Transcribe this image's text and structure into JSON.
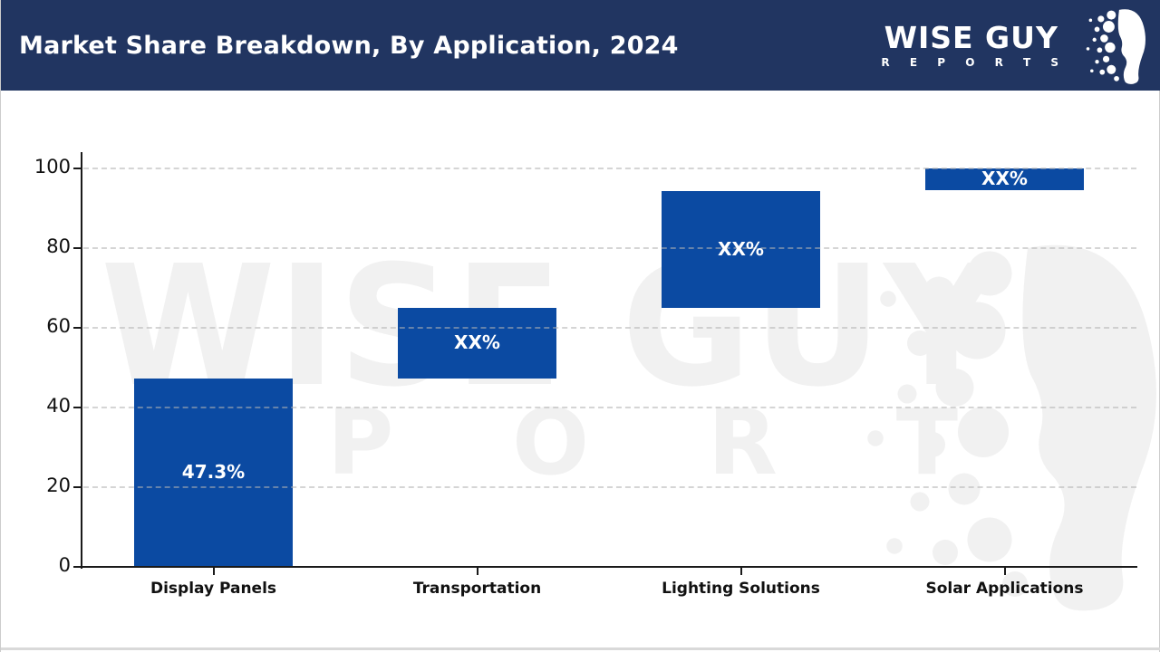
{
  "header": {
    "title": "Market Share Breakdown, By Application, 2024",
    "brand": {
      "line1": "WISE GUY",
      "line2": "R E P O R T S"
    }
  },
  "watermark": {
    "line1": "WISE GUY",
    "line2": "P O R T S"
  },
  "chart_data": {
    "type": "bar",
    "subtype": "waterfall",
    "title": "Market Share Breakdown, By Application, 2024",
    "xlabel": "",
    "ylabel": "",
    "ylim": [
      0,
      100
    ],
    "yticks": [
      0,
      20,
      40,
      60,
      80,
      100
    ],
    "grid": "horizontal-dashed",
    "legend": "none",
    "categories": [
      "Display Panels",
      "Transportation",
      "Lighting Solutions",
      "Solar Applications"
    ],
    "segments": [
      {
        "category": "Display Panels",
        "start": 0,
        "end": 47.3,
        "label": "47.3%"
      },
      {
        "category": "Transportation",
        "start": 47.3,
        "end": 65.0,
        "label": "XX%"
      },
      {
        "category": "Lighting Solutions",
        "start": 65.0,
        "end": 94.3,
        "label": "XX%"
      },
      {
        "category": "Solar Applications",
        "start": 94.5,
        "end": 100,
        "label": "XX%"
      }
    ],
    "colors": {
      "bar": "#0b4aa2",
      "bar_label": "#ffffff",
      "header_background": "#213561",
      "axis": "#1a1a1a",
      "tick_text": "#111111",
      "gridline": "#c9c9c9",
      "watermark": "#f1f1f1"
    }
  }
}
